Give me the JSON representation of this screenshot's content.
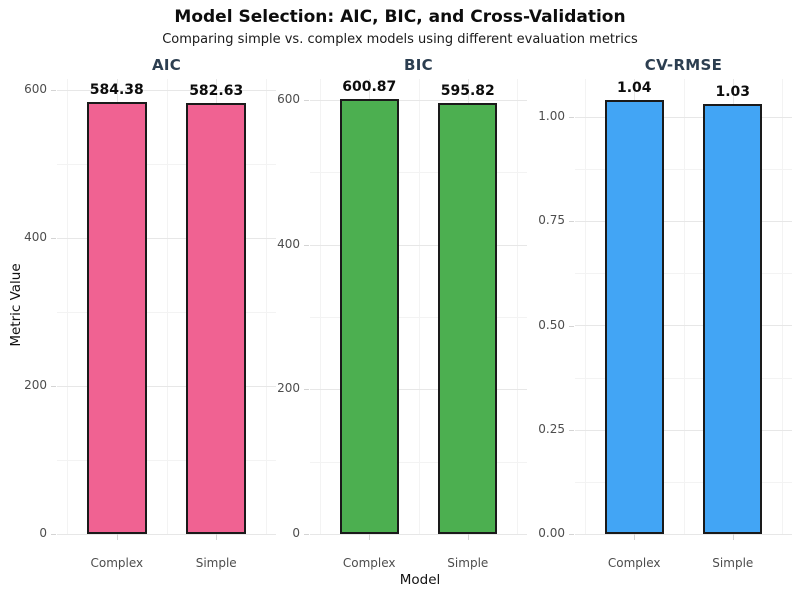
{
  "chart_data": {
    "type": "bar",
    "title": "Model Selection: AIC, BIC, and Cross-Validation",
    "subtitle": "Comparing simple vs. complex models using different evaluation metrics",
    "xlabel": "Model",
    "ylabel": "Metric Value",
    "categories": [
      "Complex",
      "Simple"
    ],
    "legend_position": "none",
    "grid": true,
    "panel_title_color": "#2C3E50",
    "bar_outline_color": "#1a1a1a",
    "facets": [
      {
        "name": "AIC",
        "values": [
          584.38,
          582.63
        ],
        "value_labels": [
          "584.38",
          "582.63"
        ],
        "bar_color": "#F06292",
        "axis_max": 615,
        "ylim": [
          0,
          615
        ],
        "major_ticks": [
          {
            "v": 0,
            "label": "0"
          },
          {
            "v": 200,
            "label": "200"
          },
          {
            "v": 400,
            "label": "400"
          },
          {
            "v": 600,
            "label": "600"
          }
        ],
        "minor_ticks": [
          100,
          300,
          500
        ]
      },
      {
        "name": "BIC",
        "values": [
          600.87,
          595.82
        ],
        "value_labels": [
          "600.87",
          "595.82"
        ],
        "bar_color": "#4CAF50",
        "axis_max": 629,
        "ylim": [
          0,
          629
        ],
        "major_ticks": [
          {
            "v": 0,
            "label": "0"
          },
          {
            "v": 200,
            "label": "200"
          },
          {
            "v": 400,
            "label": "400"
          },
          {
            "v": 600,
            "label": "600"
          }
        ],
        "minor_ticks": [
          100,
          300,
          500
        ]
      },
      {
        "name": "CV-RMSE",
        "values": [
          1.04,
          1.03
        ],
        "value_labels": [
          "1.04",
          "1.03"
        ],
        "bar_color": "#42A5F5",
        "axis_max": 1.091,
        "ylim": [
          0,
          1.091
        ],
        "major_ticks": [
          {
            "v": 0,
            "label": "0.00"
          },
          {
            "v": 0.25,
            "label": "0.25"
          },
          {
            "v": 0.5,
            "label": "0.50"
          },
          {
            "v": 0.75,
            "label": "0.75"
          },
          {
            "v": 1.0,
            "label": "1.00"
          }
        ],
        "minor_ticks": [
          0.125,
          0.375,
          0.625,
          0.875
        ]
      }
    ]
  }
}
